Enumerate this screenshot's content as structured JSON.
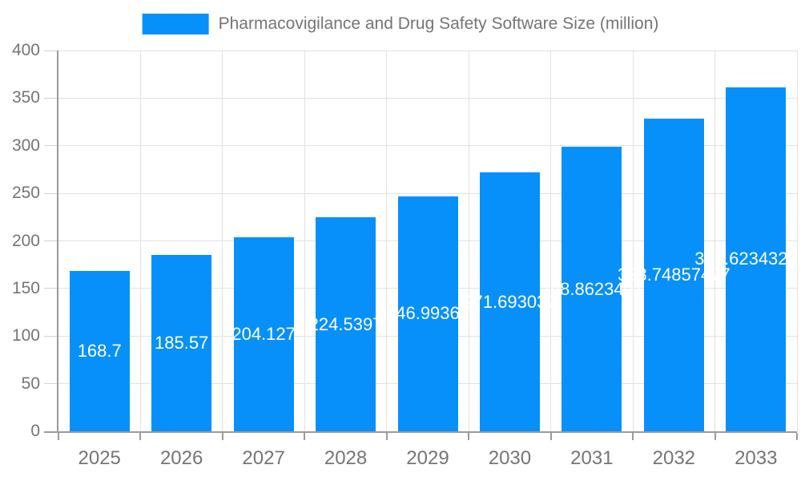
{
  "legend": {
    "label": "Pharmacovigilance and Drug Safety Software Size (million)"
  },
  "colors": {
    "bar": "#0890fa",
    "bar_label_text": "#ffffff",
    "axis_text": "#757575",
    "grid_line": "#e2e2e2",
    "minor_tick": "#d2d2d2",
    "axis_line": "#9b9b9b",
    "background": "#ffffff"
  },
  "chart_data": {
    "type": "bar",
    "title": "Pharmacovigilance and Drug Safety Software Size (million)",
    "series_name": "Pharmacovigilance and Drug Safety Software Size (million)",
    "categories": [
      "2025",
      "2026",
      "2027",
      "2028",
      "2029",
      "2030",
      "2031",
      "2032",
      "2033"
    ],
    "values": [
      168.7,
      185.57,
      204.127,
      224.5397,
      246.99367,
      271.693037,
      298.8623407,
      328.74857477,
      361.623432247
    ],
    "bar_value_labels": [
      "168.7",
      "185.57",
      "204.127",
      "224.5397",
      "246.99367",
      "271.693037",
      "298.8623407",
      "328.74857477",
      "361.623432247"
    ],
    "xlabel": "",
    "ylabel": "",
    "ylim": [
      0,
      400
    ],
    "yticks": [
      0,
      50,
      100,
      150,
      200,
      250,
      300,
      350,
      400
    ],
    "grid": true,
    "legend_position": "top-center"
  }
}
